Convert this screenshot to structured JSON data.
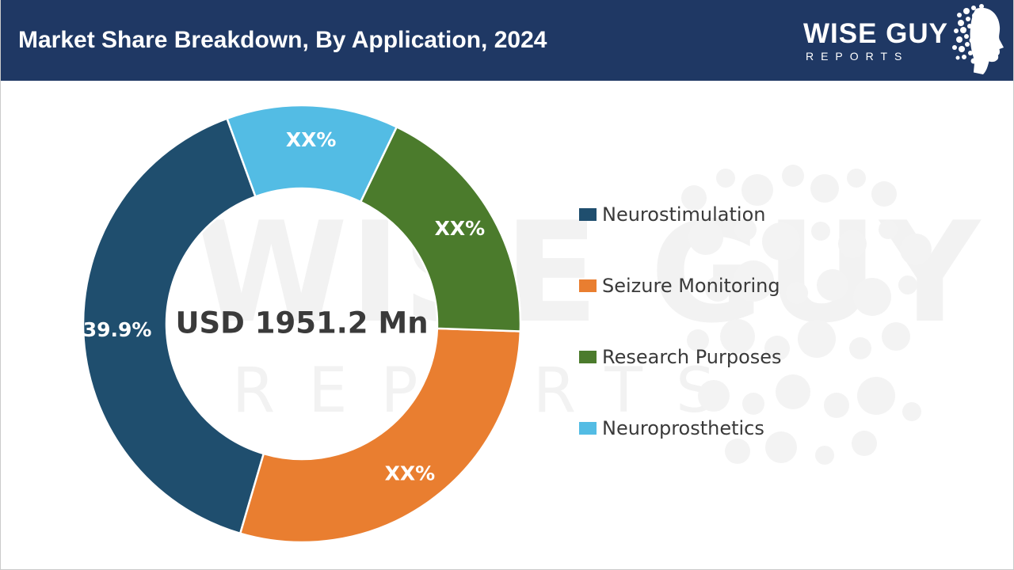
{
  "header": {
    "title": "Market Share Breakdown, By Application, 2024",
    "logo": {
      "wordmark": "WISE GUY",
      "subtitle": "REPORTS"
    }
  },
  "watermark": {
    "wordmark": "WISE GUY",
    "subtitle": "REPORTS"
  },
  "chart_data": {
    "type": "pie",
    "subtype": "donut",
    "title": "Market Share Breakdown, By Application, 2024",
    "center_label": "USD 1951.2 Mn",
    "start_angle_deg": 110,
    "direction": "counterclockwise",
    "inner_radius_ratio": 0.62,
    "legend_position": "right",
    "segments": [
      {
        "label": "Neurostimulation",
        "display_label": "39.9%",
        "value_pct": 39.9,
        "color": "#1F4E6E"
      },
      {
        "label": "Seizure Monitoring",
        "display_label": "XX%",
        "value_pct": 29.0,
        "color": "#E97E30"
      },
      {
        "label": "Research Purposes",
        "display_label": "XX%",
        "value_pct": 18.4,
        "color": "#4B7B2C"
      },
      {
        "label": "Neuroprosthetics",
        "display_label": "XX%",
        "value_pct": 12.7,
        "color": "#53BCE4"
      }
    ]
  },
  "colors": {
    "header_bg": "#1F3864",
    "center_text": "#3A3A3A",
    "legend_text": "#3A3A3A",
    "watermark": "#F2F2F2",
    "border": "#CBCBCB",
    "segment_label_text": "#FFFFFF"
  }
}
